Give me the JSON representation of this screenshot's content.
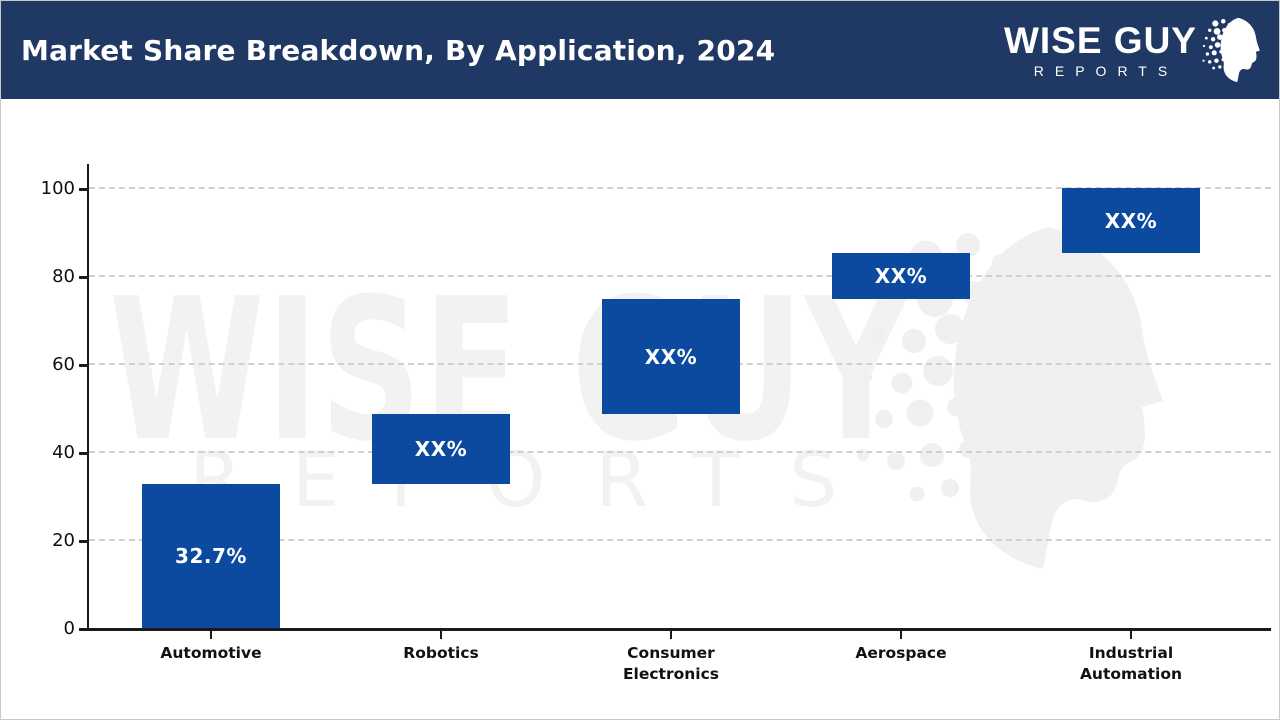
{
  "header": {
    "title": "Market Share Breakdown, By Application, 2024",
    "background_color": "#203864",
    "logo": {
      "line1": "WISE GUY",
      "line2": "REPORTS"
    }
  },
  "watermark": {
    "line1": "WISE GUY",
    "line2": "REPORTS"
  },
  "chart_data": {
    "type": "bar",
    "variant": "waterfall",
    "title": "Market Share Breakdown, By Application, 2024",
    "xlabel": "",
    "ylabel": "",
    "ylim": [
      0,
      100
    ],
    "yticks": [
      0,
      20,
      40,
      60,
      80,
      100
    ],
    "grid": true,
    "legend": false,
    "bar_color": "#0b4a9f",
    "bar_label_color": "#ffffff",
    "categories": [
      "Automotive",
      "Robotics",
      "Consumer Electronics",
      "Aerospace",
      "Industrial Automation"
    ],
    "category_lines": [
      [
        "Automotive"
      ],
      [
        "Robotics"
      ],
      [
        "Consumer",
        "Electronics"
      ],
      [
        "Aerospace"
      ],
      [
        "Industrial",
        "Automation"
      ]
    ],
    "values": [
      32.7,
      15.9,
      26.2,
      10.4,
      14.8
    ],
    "bars": [
      {
        "category": "Automotive",
        "start": 0,
        "end": 32.7,
        "label": "32.7%"
      },
      {
        "category": "Robotics",
        "start": 32.7,
        "end": 48.6,
        "label": "XX%"
      },
      {
        "category": "Consumer Electronics",
        "start": 48.6,
        "end": 74.8,
        "label": "XX%"
      },
      {
        "category": "Aerospace",
        "start": 74.8,
        "end": 85.2,
        "label": "XX%"
      },
      {
        "category": "Industrial Automation",
        "start": 85.2,
        "end": 100,
        "label": "XX%"
      }
    ]
  }
}
